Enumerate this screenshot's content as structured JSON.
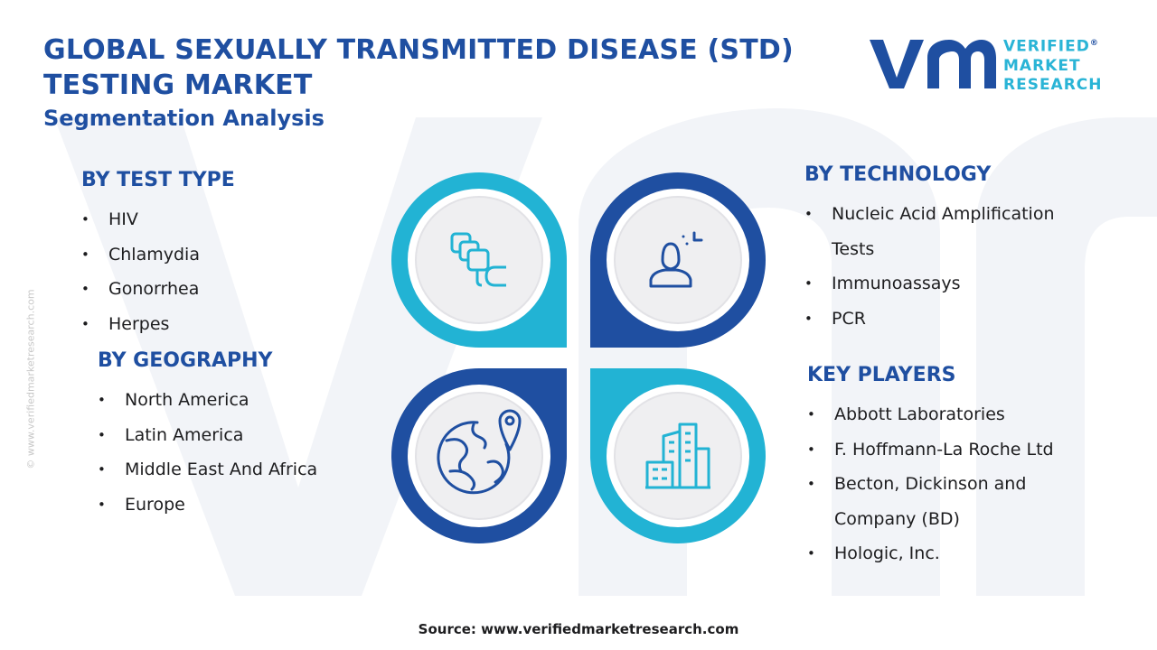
{
  "header": {
    "title": "GLOBAL SEXUALLY TRANSMITTED DISEASE (STD) TESTING MARKET",
    "subtitle": "Segmentation Analysis"
  },
  "logo": {
    "line1": "VERIFIED",
    "line2": "MARKET",
    "line3": "RESEARCH",
    "registered_mark": "®"
  },
  "sections": {
    "test_type": {
      "heading": "BY TEST TYPE",
      "items": [
        "HIV",
        "Chlamydia",
        "Gonorrhea",
        "Herpes"
      ]
    },
    "geography": {
      "heading": "BY GEOGRAPHY",
      "items": [
        "North America",
        "Latin America",
        "Middle East And Africa",
        "Europe"
      ]
    },
    "technology": {
      "heading": "BY TECHNOLOGY",
      "items": [
        "Nucleic Acid Amplification",
        "Tests",
        "Immunoassays",
        "PCR"
      ]
    },
    "key_players": {
      "heading": "KEY PLAYERS",
      "items": [
        "Abbott Laboratories",
        "F. Hoffmann-La Roche Ltd",
        "Becton, Dickinson and",
        "Company (BD)",
        "Hologic, Inc."
      ]
    }
  },
  "icons": {
    "top_left": "blocks-icon",
    "top_right": "person-scan-icon",
    "bottom_left": "globe-location-icon",
    "bottom_right": "buildings-icon"
  },
  "colors": {
    "navy": "#1f4fa1",
    "cyan": "#2ab4d6",
    "circle_fill": "#efeff1"
  },
  "side_copyright": "© www.verifiedmarketresearch.com",
  "source": "Source: www.verifiedmarketresearch.com"
}
